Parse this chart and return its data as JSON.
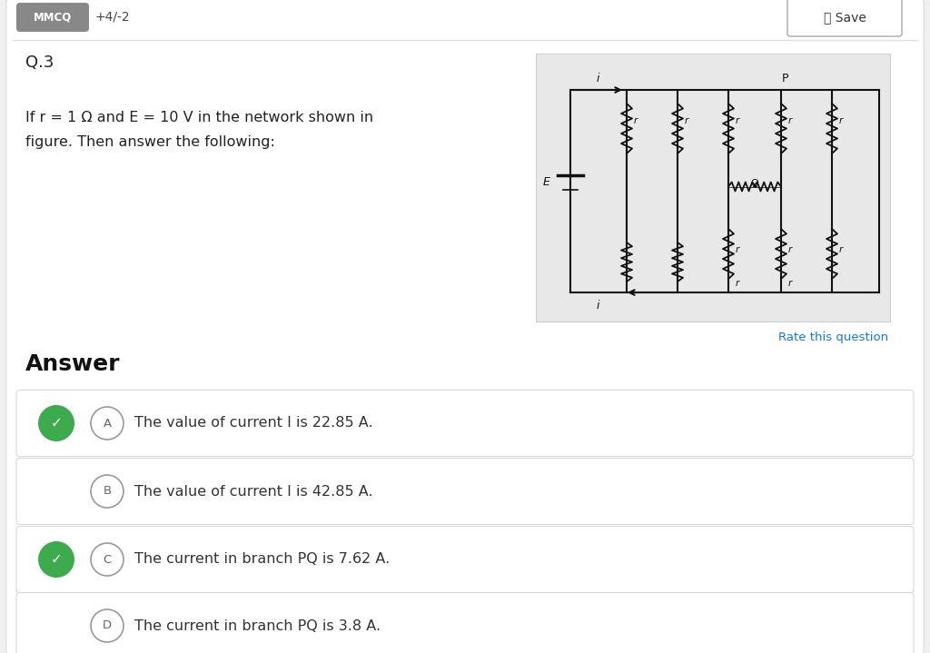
{
  "bg_color": "#f0f0f0",
  "card_bg": "#ffffff",
  "title": "Q.3",
  "tag_text": "MMCQ",
  "tag_bg": "#888888",
  "tag_fg": "#ffffff",
  "marks_text": "+4/-2",
  "rate_text": "Rate this question",
  "rate_color": "#1a73e8",
  "answer_label": "Answer",
  "options": [
    {
      "label": "A",
      "text": "The value of current I is 22.85 A.",
      "correct": true
    },
    {
      "label": "B",
      "text": "The value of current I is 42.85 A.",
      "correct": false
    },
    {
      "label": "C",
      "text": "The current in branch PQ is 7.62 A.",
      "correct": true
    },
    {
      "label": "D",
      "text": "The current in branch PQ is 3.8 A.",
      "correct": false
    }
  ],
  "correct_color": "#3daa4e",
  "option_border": "#d8d8d8",
  "option_text_color": "#333333",
  "checkmark": "✓",
  "question_line1": "If r = 1 Ω and E = 10 V in the network shown in",
  "question_line2": "figure. Then answer the following:"
}
